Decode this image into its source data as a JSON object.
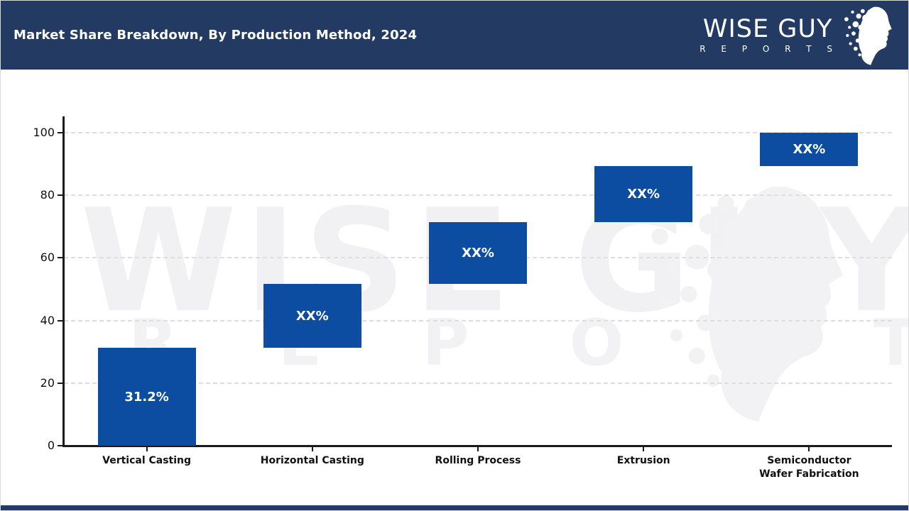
{
  "header": {
    "logo": {
      "name_line": "WISE GUY",
      "reports_line": "R E P O R T S"
    }
  },
  "watermark": {
    "name_line": "WISE GUY",
    "reports_line": "R E P O R T S"
  },
  "colors": {
    "header_bg": "#233a63",
    "bar": "#0d4da1",
    "grid": "#dedede",
    "axis": "#1a1a1a",
    "value_label_text": "#ffffff",
    "watermark": "#f1f1f3"
  },
  "chart_data": {
    "type": "bar",
    "subtype": "waterfall",
    "title": "Market Share Breakdown, By Production Method, 2024",
    "categories": [
      "Vertical Casting",
      "Horizontal Casting",
      "Rolling Process",
      "Extrusion",
      "Semiconductor Wafer Fabrication"
    ],
    "tick_labels": [
      "Vertical Casting",
      "Horizontal Casting",
      "Rolling Process",
      "Extrusion",
      "Semiconductor\nWafer Fabrication"
    ],
    "segments": [
      {
        "category": "Vertical Casting",
        "start": 0,
        "end": 31.2,
        "label": "31.2%"
      },
      {
        "category": "Horizontal Casting",
        "start": 31.2,
        "end": 51.7,
        "label": "XX%"
      },
      {
        "category": "Rolling Process",
        "start": 51.7,
        "end": 71.4,
        "label": "XX%"
      },
      {
        "category": "Extrusion",
        "start": 71.4,
        "end": 89.4,
        "label": "XX%"
      },
      {
        "category": "Semiconductor Wafer Fabrication",
        "start": 89.4,
        "end": 100,
        "label": "XX%"
      }
    ],
    "xlabel": "",
    "ylabel": "",
    "ylim": [
      0,
      100
    ],
    "yticks": [
      0,
      20,
      40,
      60,
      80,
      100
    ],
    "grid": "horizontal-dashed",
    "legend": "none"
  }
}
